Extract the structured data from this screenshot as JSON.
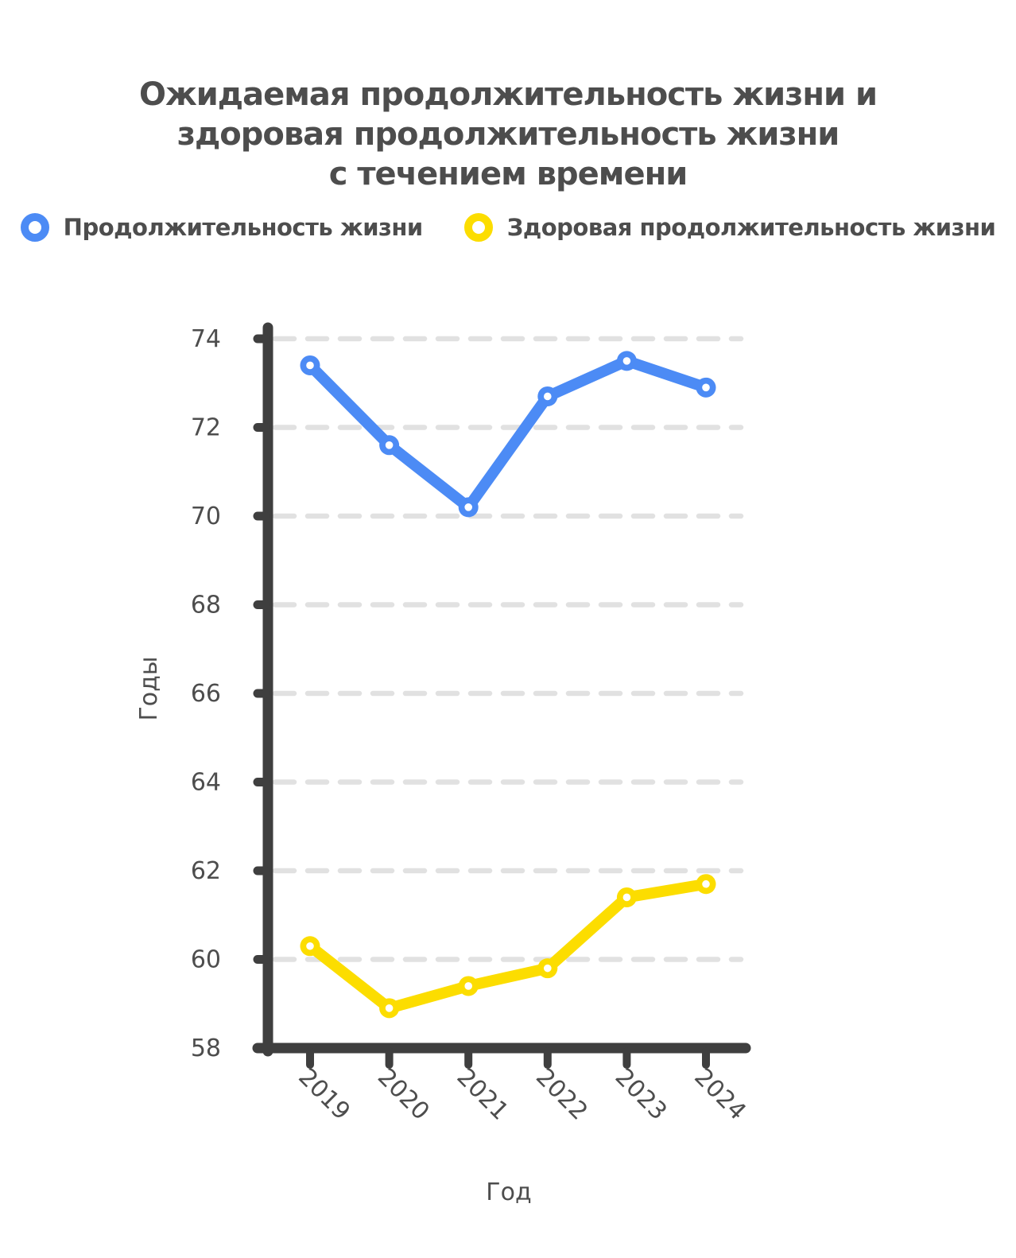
{
  "title": {
    "lines": [
      "Ожидаемая продолжительность жизни и",
      "здоровая продолжительность жизни",
      "с течением времени"
    ]
  },
  "legend": [
    {
      "label": "Продолжительность жизни",
      "color": "#4c8bf5"
    },
    {
      "label": "Здоровая продолжительность жизни",
      "color": "#fcdd00"
    }
  ],
  "chart_data": {
    "type": "line",
    "title": "Ожидаемая продолжительность жизни и здоровая продолжительность жизни с течением времени",
    "x": [
      2019,
      2020,
      2021,
      2022,
      2023,
      2024
    ],
    "series": [
      {
        "name": "Продолжительность жизни",
        "color": "#4c8bf5",
        "values": [
          73.4,
          71.6,
          70.2,
          72.7,
          73.5,
          72.9
        ]
      },
      {
        "name": "Здоровая продолжительность жизни",
        "color": "#fcdd00",
        "values": [
          60.3,
          58.9,
          59.4,
          59.8,
          61.4,
          61.7
        ]
      }
    ],
    "xlabel": "Год",
    "ylabel": "Годы",
    "ylim": [
      58,
      74
    ],
    "yticks": [
      58,
      60,
      62,
      64,
      66,
      68,
      70,
      72,
      74
    ],
    "grid": true,
    "legend_position": "top",
    "marker": "circle-ring",
    "axis_color": "#3f3f3f",
    "grid_color": "#e1e1e1",
    "tick_label_color": "#4d4d4d"
  }
}
